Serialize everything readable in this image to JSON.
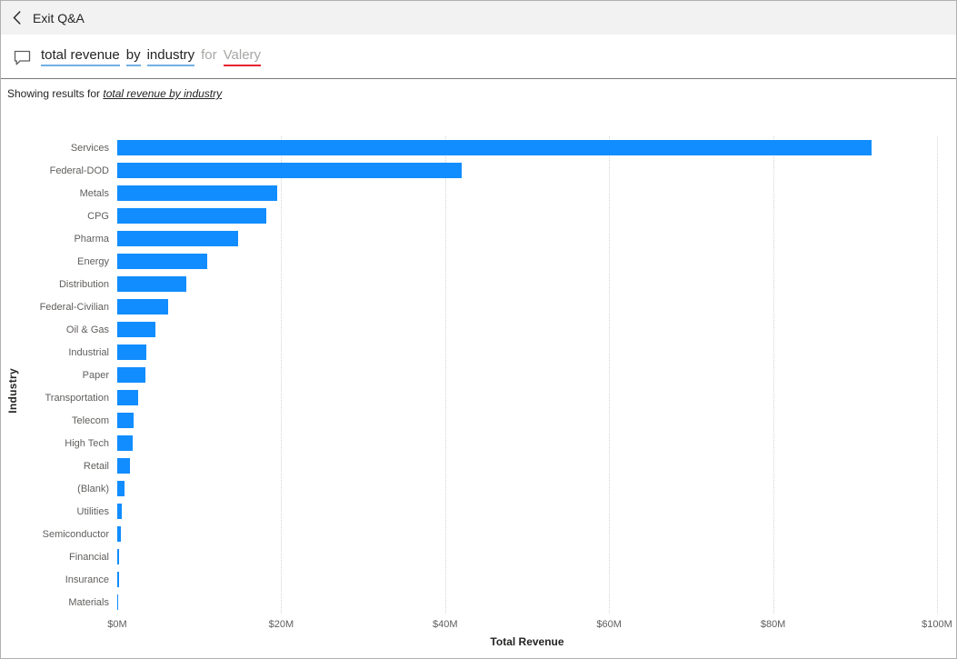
{
  "header": {
    "back_label": "Exit Q&A"
  },
  "query": {
    "terms": [
      {
        "text": "total revenue",
        "style": "recognized"
      },
      {
        "text": "by",
        "style": "recognized"
      },
      {
        "text": "industry",
        "style": "recognized"
      },
      {
        "text": "for",
        "style": "plain"
      },
      {
        "text": "Valery",
        "style": "error"
      }
    ]
  },
  "results": {
    "prefix": "Showing results for",
    "query_text": "total revenue by industry"
  },
  "chart_data": {
    "type": "bar",
    "orientation": "horizontal",
    "title": "",
    "categories": [
      "Services",
      "Federal-DOD",
      "Metals",
      "CPG",
      "Pharma",
      "Energy",
      "Distribution",
      "Federal-Civilian",
      "Oil & Gas",
      "Industrial",
      "Paper",
      "Transportation",
      "Telecom",
      "High Tech",
      "Retail",
      "(Blank)",
      "Utilities",
      "Semiconductor",
      "Financial",
      "Insurance",
      "Materials"
    ],
    "values": [
      92,
      42,
      19.5,
      18.2,
      14.8,
      11,
      8.4,
      6.2,
      4.7,
      3.6,
      3.4,
      2.5,
      2.0,
      1.9,
      1.5,
      0.9,
      0.5,
      0.45,
      0.25,
      0.18,
      0.12
    ],
    "values_unit": "$M",
    "xlabel": "Total Revenue",
    "ylabel": "Industry",
    "xlim": [
      0,
      100
    ],
    "x_ticks": [
      "$0M",
      "$20M",
      "$40M",
      "$60M",
      "$80M",
      "$100M"
    ],
    "bar_color": "#118DFF",
    "grid": true,
    "legend": "none"
  }
}
